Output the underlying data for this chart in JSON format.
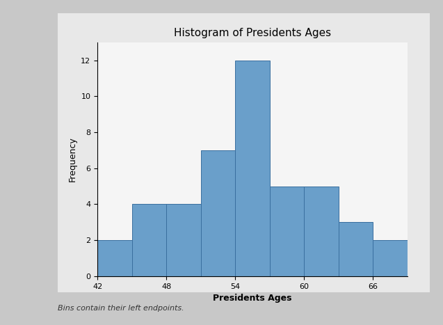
{
  "title": "Histogram of Presidents Ages",
  "xlabel": "Presidents Ages",
  "ylabel": "Frequency",
  "bin_edges": [
    42,
    45,
    48,
    51,
    54,
    57,
    60,
    63,
    66,
    69
  ],
  "frequencies": [
    2,
    4,
    4,
    7,
    12,
    5,
    5,
    3,
    2
  ],
  "bar_color": "#6A9FCA",
  "bar_edge_color": "#3A6F9F",
  "ylim": [
    0,
    13
  ],
  "yticks": [
    0,
    2,
    4,
    6,
    8,
    10,
    12
  ],
  "xticks": [
    42,
    48,
    54,
    60,
    66
  ],
  "xlim": [
    42,
    69
  ],
  "footnote": "Bins contain their left endpoints.",
  "outer_bg_color": "#C8C8C8",
  "inner_bg_color": "#E8E8E8",
  "plot_bg_color": "#F5F5F5",
  "title_fontsize": 11,
  "label_fontsize": 9,
  "tick_fontsize": 8,
  "footnote_fontsize": 8
}
